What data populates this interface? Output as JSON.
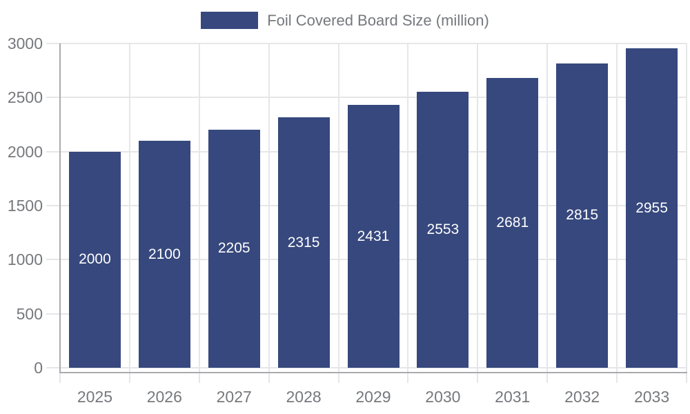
{
  "chart_data": {
    "type": "bar",
    "title": "Foil Covered Board Size (million)",
    "legend": {
      "label": "Foil Covered Board Size (million)",
      "position": "top-center"
    },
    "categories": [
      "2025",
      "2026",
      "2027",
      "2028",
      "2029",
      "2030",
      "2031",
      "2032",
      "2033"
    ],
    "series": [
      {
        "name": "Foil Covered Board Size (million)",
        "values": [
          2000,
          2100,
          2205,
          2315,
          2431,
          2553,
          2681,
          2815,
          2955
        ]
      }
    ],
    "xlabel": "",
    "ylabel": "",
    "ylim": [
      0,
      3000
    ],
    "y_ticks": [
      0,
      500,
      1000,
      1500,
      2000,
      2500,
      3000
    ],
    "grid": true,
    "bar_value_labels_visible": true,
    "colors": {
      "bar": "#36487D",
      "bar_label": "#FFFFFF",
      "axis_line": "#AAAAAE",
      "gridline": "#E6E6E9",
      "tick_text": "#76787C",
      "legend_text": "#75787E",
      "background": "#FFFFFF"
    }
  }
}
